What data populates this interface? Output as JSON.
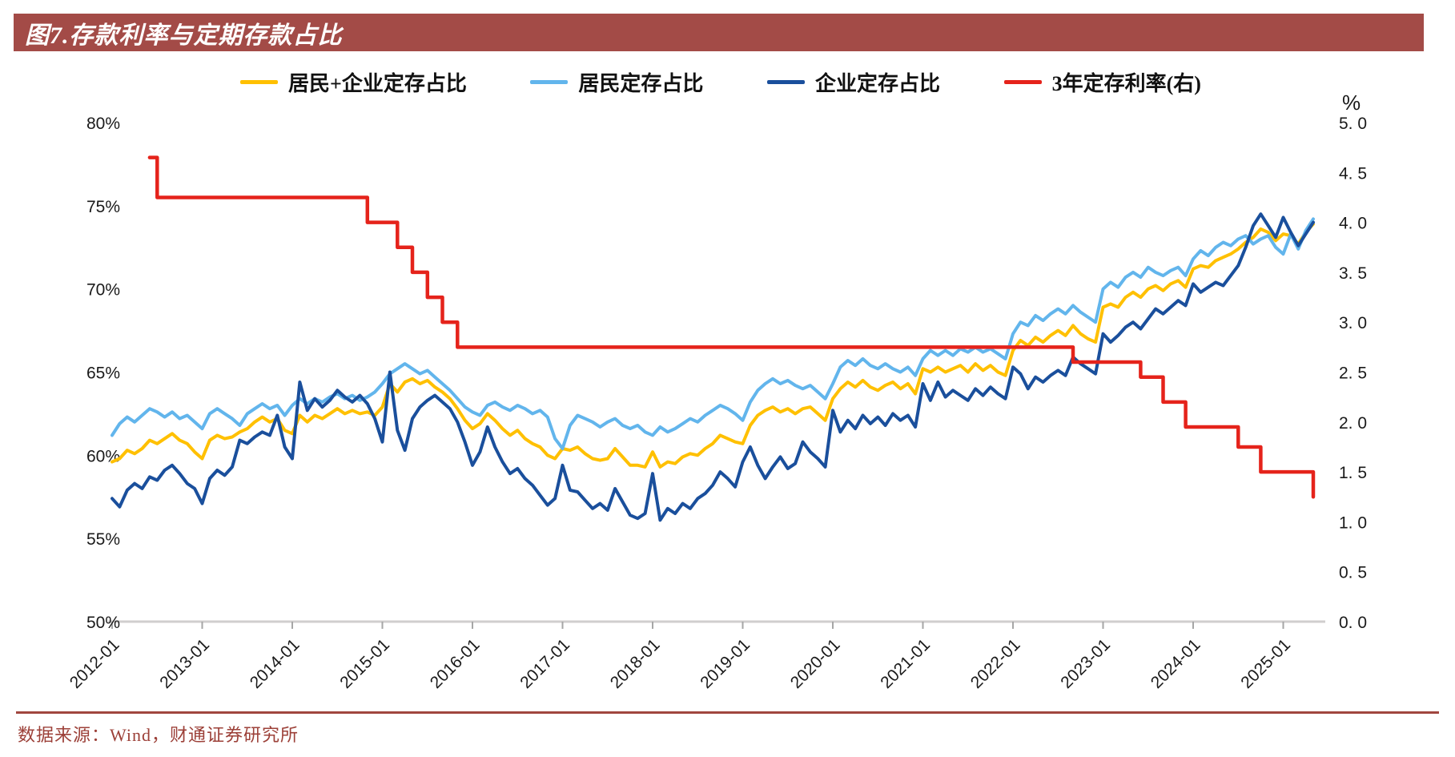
{
  "title": {
    "text": "图7.存款利率与定期存款占比",
    "bar_color": "#A34B47",
    "text_color": "#FFFFFF"
  },
  "legend": [
    {
      "key": "combined",
      "label": "居民+企业定存占比",
      "color": "#FFC000"
    },
    {
      "key": "household",
      "label": "居民定存占比",
      "color": "#62B5EC"
    },
    {
      "key": "corporate",
      "label": "企业定存占比",
      "color": "#1A4F9C"
    },
    {
      "key": "rate3y",
      "label": "3年定存利率(右)",
      "color": "#E5231B"
    }
  ],
  "footer": {
    "text": "数据来源：Wind，财通证券研究所",
    "color": "#9C4038",
    "rule_color": "#A0463F"
  },
  "chart_data": {
    "type": "line",
    "title": "存款利率与定期存款占比",
    "frequency": "monthly",
    "start_month": "2012-01",
    "end_month": "2025-05",
    "grid": false,
    "legend_position": "top",
    "x_tick_labels": [
      "2012-01",
      "2013-01",
      "2014-01",
      "2015-01",
      "2016-01",
      "2017-01",
      "2018-01",
      "2019-01",
      "2020-01",
      "2021-01",
      "2022-01",
      "2023-01",
      "2024-01",
      "2025-01"
    ],
    "left_axis": {
      "min": 50,
      "max": 80,
      "tick_values": [
        80,
        75,
        70,
        65,
        60,
        55,
        50
      ],
      "tick_labels": [
        "80%",
        "75%",
        "70%",
        "65%",
        "60%",
        "55%",
        "50%"
      ],
      "unit": "%"
    },
    "right_axis": {
      "min": 0,
      "max": 5,
      "tick_values": [
        5,
        4.5,
        4,
        3.5,
        3,
        2.5,
        2,
        1.5,
        1,
        0.5,
        0
      ],
      "tick_labels": [
        "5. 0",
        "4. 5",
        "4. 0",
        "3. 5",
        "3. 0",
        "2. 5",
        "2. 0",
        "1. 5",
        "1. 0",
        "0. 5",
        "0. 0"
      ],
      "unit_label": "%"
    },
    "series": [
      {
        "key": "combined",
        "name": "居民+企业定存占比",
        "color": "#FFC000",
        "axis": "left",
        "line_width": 4,
        "values": [
          59.6,
          59.8,
          60.3,
          60.1,
          60.4,
          60.9,
          60.7,
          61.0,
          61.3,
          60.9,
          60.7,
          60.2,
          59.8,
          60.9,
          61.2,
          61.0,
          61.1,
          61.4,
          61.6,
          62.0,
          62.3,
          62.0,
          62.2,
          61.5,
          61.3,
          62.4,
          62.0,
          62.4,
          62.2,
          62.5,
          62.8,
          62.5,
          62.7,
          62.5,
          62.6,
          62.4,
          62.9,
          64.3,
          63.8,
          64.4,
          64.6,
          64.3,
          64.5,
          64.1,
          63.8,
          63.4,
          62.8,
          62.1,
          61.6,
          61.9,
          62.5,
          62.1,
          61.6,
          61.2,
          61.5,
          61.0,
          60.7,
          60.5,
          60.0,
          59.8,
          60.4,
          60.3,
          60.5,
          60.1,
          59.8,
          59.7,
          59.8,
          60.4,
          59.9,
          59.4,
          59.4,
          59.3,
          60.2,
          59.3,
          59.6,
          59.5,
          59.9,
          60.1,
          60.0,
          60.4,
          60.7,
          61.2,
          61.0,
          60.8,
          60.7,
          61.8,
          62.4,
          62.7,
          62.9,
          62.6,
          62.8,
          62.5,
          62.8,
          62.9,
          62.5,
          62.1,
          63.4,
          64.0,
          64.4,
          64.1,
          64.5,
          64.1,
          63.9,
          64.2,
          64.4,
          64.0,
          64.3,
          63.7,
          65.2,
          65.0,
          65.3,
          65.0,
          65.2,
          65.4,
          65.0,
          65.5,
          65.1,
          65.4,
          65.0,
          64.8,
          66.3,
          66.9,
          66.6,
          67.1,
          66.8,
          67.2,
          67.5,
          67.2,
          67.8,
          67.3,
          67.0,
          66.8,
          68.9,
          69.1,
          68.9,
          69.5,
          69.8,
          69.5,
          70.0,
          70.2,
          69.9,
          70.3,
          70.5,
          70.1,
          71.2,
          71.4,
          71.3,
          71.7,
          71.9,
          72.1,
          72.4,
          72.8,
          73.1,
          73.6,
          73.4,
          72.9,
          73.3,
          73.2,
          72.7,
          73.4,
          73.9
        ]
      },
      {
        "key": "household",
        "name": "居民定存占比",
        "color": "#62B5EC",
        "axis": "left",
        "line_width": 4,
        "values": [
          61.2,
          61.9,
          62.3,
          62.0,
          62.4,
          62.8,
          62.6,
          62.3,
          62.6,
          62.2,
          62.4,
          62.0,
          61.6,
          62.5,
          62.8,
          62.5,
          62.2,
          61.8,
          62.5,
          62.8,
          63.1,
          62.8,
          63.0,
          62.4,
          63.0,
          63.4,
          63.1,
          63.4,
          63.2,
          63.5,
          63.7,
          63.4,
          63.6,
          63.3,
          63.5,
          63.8,
          64.3,
          64.9,
          65.2,
          65.5,
          65.2,
          64.9,
          65.1,
          64.7,
          64.3,
          63.9,
          63.4,
          62.9,
          62.6,
          62.4,
          63.0,
          63.2,
          62.9,
          62.7,
          63.0,
          62.8,
          62.5,
          62.7,
          62.3,
          61.0,
          60.4,
          61.8,
          62.4,
          62.2,
          62.0,
          61.7,
          62.0,
          62.2,
          61.8,
          61.6,
          61.8,
          61.4,
          61.2,
          61.7,
          61.4,
          61.6,
          61.9,
          62.2,
          62.0,
          62.4,
          62.7,
          63.0,
          62.8,
          62.5,
          62.1,
          63.2,
          63.9,
          64.3,
          64.6,
          64.3,
          64.5,
          64.2,
          64.0,
          64.2,
          63.8,
          63.4,
          64.3,
          65.3,
          65.7,
          65.4,
          65.8,
          65.4,
          65.2,
          65.5,
          65.2,
          65.0,
          65.3,
          64.8,
          65.8,
          66.3,
          66.0,
          66.3,
          66.0,
          66.4,
          66.2,
          66.5,
          66.2,
          66.4,
          66.1,
          65.8,
          67.3,
          68.0,
          67.8,
          68.4,
          68.1,
          68.5,
          68.8,
          68.5,
          69.0,
          68.6,
          68.3,
          68.0,
          70.0,
          70.4,
          70.1,
          70.7,
          71.0,
          70.7,
          71.3,
          71.0,
          70.8,
          71.1,
          71.3,
          70.8,
          71.8,
          72.3,
          72.0,
          72.5,
          72.8,
          72.6,
          73.0,
          73.2,
          72.7,
          73.0,
          73.2,
          72.5,
          72.1,
          73.3,
          72.4,
          73.5,
          74.2
        ]
      },
      {
        "key": "corporate",
        "name": "企业定存占比",
        "color": "#1A4F9C",
        "axis": "left",
        "line_width": 4,
        "values": [
          57.4,
          56.9,
          57.9,
          58.3,
          58.0,
          58.7,
          58.5,
          59.1,
          59.4,
          58.9,
          58.3,
          58.0,
          57.1,
          58.6,
          59.1,
          58.8,
          59.3,
          60.9,
          60.7,
          61.1,
          61.4,
          61.2,
          62.4,
          60.5,
          59.8,
          64.4,
          62.7,
          63.4,
          62.9,
          63.3,
          63.9,
          63.5,
          63.2,
          63.6,
          63.1,
          62.2,
          60.8,
          65.0,
          61.5,
          60.3,
          62.2,
          62.9,
          63.3,
          63.6,
          63.2,
          62.8,
          62.0,
          60.8,
          59.4,
          60.2,
          61.7,
          60.5,
          59.6,
          58.9,
          59.2,
          58.6,
          58.2,
          57.6,
          57.0,
          57.4,
          59.4,
          57.9,
          57.8,
          57.3,
          56.8,
          57.1,
          56.7,
          58.0,
          57.2,
          56.4,
          56.2,
          56.5,
          58.9,
          56.1,
          56.8,
          56.5,
          57.1,
          56.8,
          57.4,
          57.7,
          58.2,
          59.0,
          58.6,
          58.1,
          59.6,
          60.5,
          59.4,
          58.6,
          59.3,
          59.9,
          59.2,
          59.5,
          60.8,
          60.2,
          59.8,
          59.3,
          62.7,
          61.4,
          62.1,
          61.6,
          62.4,
          61.9,
          62.3,
          61.8,
          62.5,
          62.1,
          62.4,
          61.7,
          64.3,
          63.3,
          64.4,
          63.5,
          63.9,
          63.6,
          63.3,
          64.0,
          63.6,
          64.1,
          63.7,
          63.4,
          65.3,
          64.9,
          64.0,
          64.7,
          64.4,
          64.8,
          65.1,
          64.8,
          65.9,
          65.5,
          65.2,
          64.9,
          67.3,
          66.8,
          67.2,
          67.7,
          68.0,
          67.6,
          68.2,
          68.8,
          68.5,
          68.9,
          69.3,
          69.0,
          70.3,
          69.8,
          70.1,
          70.4,
          70.2,
          70.8,
          71.4,
          72.5,
          73.8,
          74.5,
          73.8,
          73.1,
          74.3,
          73.4,
          72.6,
          73.3,
          74.0
        ]
      },
      {
        "key": "rate3y",
        "name": "3年定存利率(右)",
        "color": "#E5231B",
        "axis": "right",
        "line_width": 4.5,
        "style": "step",
        "steps": [
          {
            "month": "2012-06",
            "value": 4.65
          },
          {
            "month": "2012-07",
            "value": 4.25
          },
          {
            "month": "2014-11",
            "value": 4.0
          },
          {
            "month": "2015-03",
            "value": 3.75
          },
          {
            "month": "2015-05",
            "value": 3.5
          },
          {
            "month": "2015-07",
            "value": 3.25
          },
          {
            "month": "2015-09",
            "value": 3.0
          },
          {
            "month": "2015-11",
            "value": 2.75
          },
          {
            "month": "2022-09",
            "value": 2.6
          },
          {
            "month": "2023-06",
            "value": 2.45
          },
          {
            "month": "2023-09",
            "value": 2.2
          },
          {
            "month": "2023-12",
            "value": 1.95
          },
          {
            "month": "2024-07",
            "value": 1.75
          },
          {
            "month": "2024-10",
            "value": 1.5
          },
          {
            "month": "2025-05",
            "value": 1.25
          }
        ]
      }
    ]
  }
}
